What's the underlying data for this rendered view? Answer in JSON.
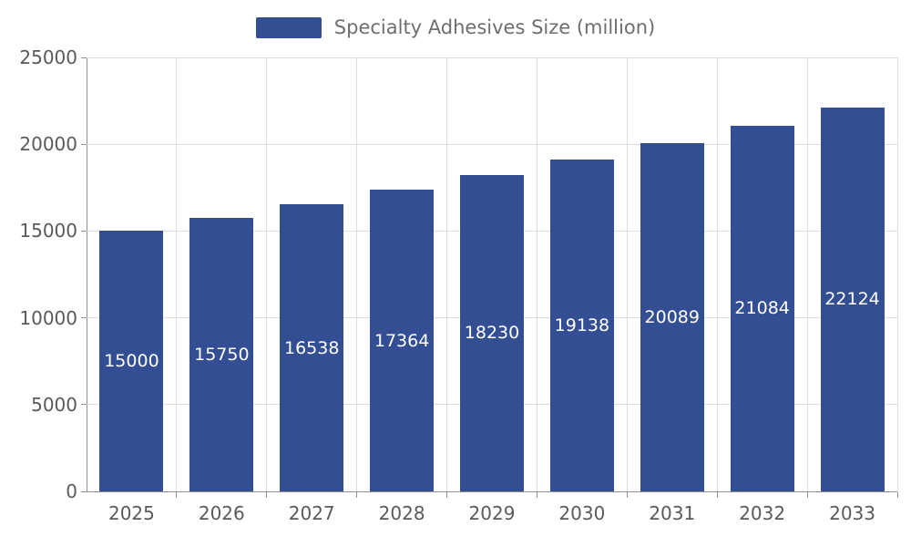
{
  "legend": {
    "label": "Specialty Adhesives Size (million)"
  },
  "colors": {
    "bar": "#334e93",
    "grid": "#dddddd",
    "axis": "#8f8f8f",
    "bar_label_text": "#ffffff",
    "tick_text": "#5a5a5a",
    "legend_text": "#6e6e6e"
  },
  "chart_data": {
    "type": "bar",
    "title": "Specialty Adhesives Size (million)",
    "categories": [
      "2025",
      "2026",
      "2027",
      "2028",
      "2029",
      "2030",
      "2031",
      "2032",
      "2033"
    ],
    "values": [
      15000,
      15750,
      16538,
      17364,
      18230,
      19138,
      20089,
      21084,
      22124
    ],
    "xlabel": "",
    "ylabel": "",
    "ylim": [
      0,
      25000
    ],
    "yticks": [
      0,
      5000,
      10000,
      15000,
      20000,
      25000
    ],
    "grid": true,
    "legend_position": "top",
    "bar_label_position": "inside-center"
  }
}
